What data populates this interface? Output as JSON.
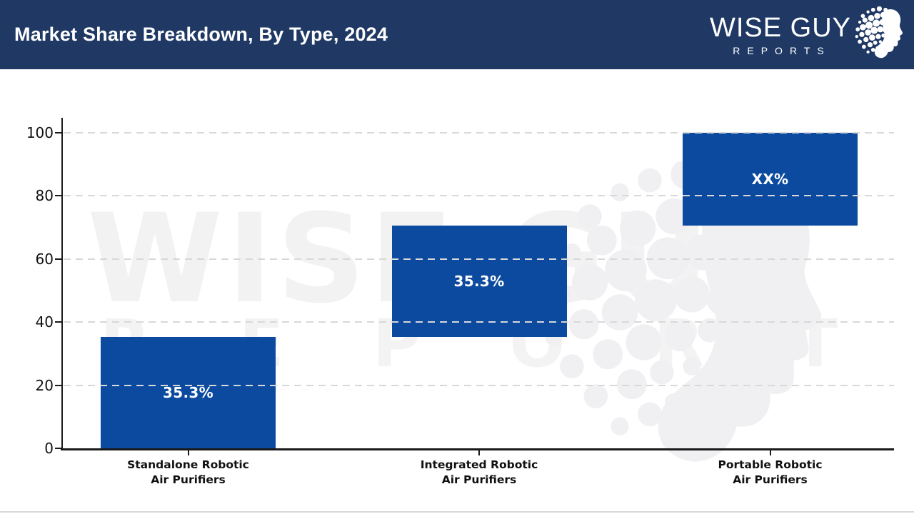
{
  "header": {
    "title": "Market Share Breakdown, By Type, 2024",
    "logo": {
      "name": "WISE GUY",
      "sub": "REPORTS"
    }
  },
  "watermark": {
    "line1": "WISE GUY",
    "line2": "R E P O R T S"
  },
  "chart_data": {
    "type": "bar",
    "variant": "waterfall-stacked-segments",
    "title": "Market Share Breakdown, By Type, 2024",
    "categories": [
      [
        "Standalone Robotic",
        "Air Purifiers"
      ],
      [
        "Integrated Robotic",
        "Air Purifiers"
      ],
      [
        "Portable Robotic",
        "Air Purifiers"
      ]
    ],
    "series": [
      {
        "name": "Market Share %",
        "values": [
          35.3,
          35.3,
          29.4
        ],
        "bases": [
          0,
          35.3,
          70.6
        ],
        "labels": [
          "35.3%",
          "35.3%",
          "XX%"
        ]
      }
    ],
    "xlabel": "",
    "ylabel": "",
    "ylim": [
      0,
      100
    ],
    "yticks": [
      0,
      20,
      40,
      60,
      80,
      100
    ],
    "grid": "horizontal-dashed-over-bars",
    "legend": "none",
    "bar_color": "#0b4a9e",
    "bar_label_color": "#ffffff"
  },
  "colors": {
    "header_bg": "#1f3864",
    "axis": "#1a1a1a",
    "gridline": "#d8d8d8",
    "watermark": "#f2f2f3",
    "bottom_rule": "#d9d9d9"
  }
}
